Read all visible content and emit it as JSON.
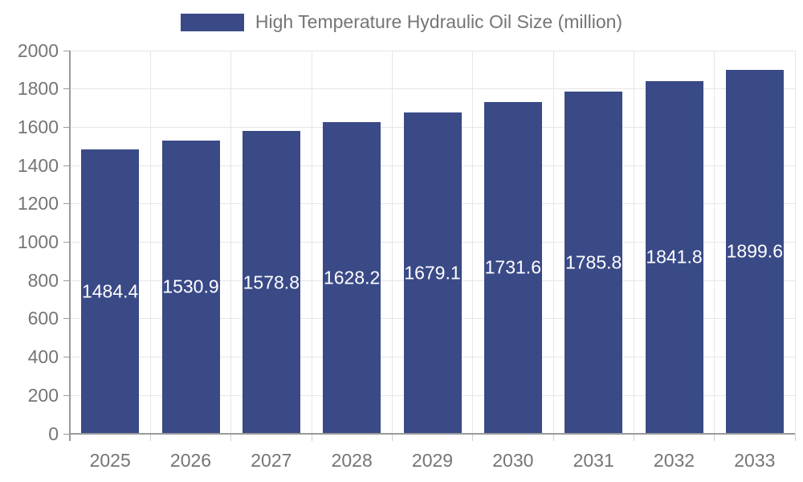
{
  "chart_data": {
    "type": "bar",
    "title": "",
    "legend": {
      "label": "High Temperature Hydraulic Oil Size (million)",
      "position": "top-center"
    },
    "categories": [
      "2025",
      "2026",
      "2027",
      "2028",
      "2029",
      "2030",
      "2031",
      "2032",
      "2033"
    ],
    "series": [
      {
        "name": "High Temperature Hydraulic Oil Size (million)",
        "values": [
          1484.4,
          1530.9,
          1578.8,
          1628.2,
          1679.1,
          1731.6,
          1785.8,
          1841.8,
          1899.6
        ],
        "value_labels": [
          "1484.4",
          "1530.9",
          "1578.8",
          "1628.2",
          "1679.1",
          "1731.6",
          "1785.8",
          "1841.8",
          "1899.6"
        ]
      }
    ],
    "xlabel": "",
    "ylabel": "",
    "ylim": [
      0,
      2000
    ],
    "yticks": [
      "0",
      "200",
      "400",
      "600",
      "800",
      "1000",
      "1200",
      "1400",
      "1600",
      "1800",
      "2000"
    ],
    "grid": true,
    "colors": {
      "bar": "#3a4a87",
      "axis_line": "#9a9a9a",
      "gridline": "#e6e6e6",
      "tick_x": "#cfcfcf",
      "axis_text": "#757575",
      "value_text": "#ffffff",
      "background": "#ffffff"
    }
  }
}
